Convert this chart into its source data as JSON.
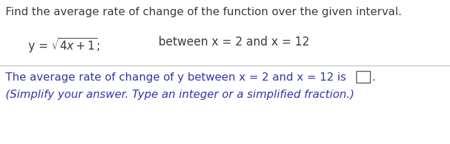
{
  "title_text": "Find the average rate of change of the function over the given interval.",
  "between_text": "between x = 2 and x = 12",
  "answer_line1_pre": "The average rate of change of y between x = 2 and x = 12 is",
  "answer_line2": "(Simplify your answer. Type an integer or a simplified fraction.)",
  "bg_color": "#ffffff",
  "text_color_dark": "#3a3a3a",
  "text_color_blue": "#3333aa",
  "title_fontsize": 11.5,
  "body_fontsize": 11.5,
  "fig_width": 6.53,
  "fig_height": 2.09,
  "dpi": 100
}
